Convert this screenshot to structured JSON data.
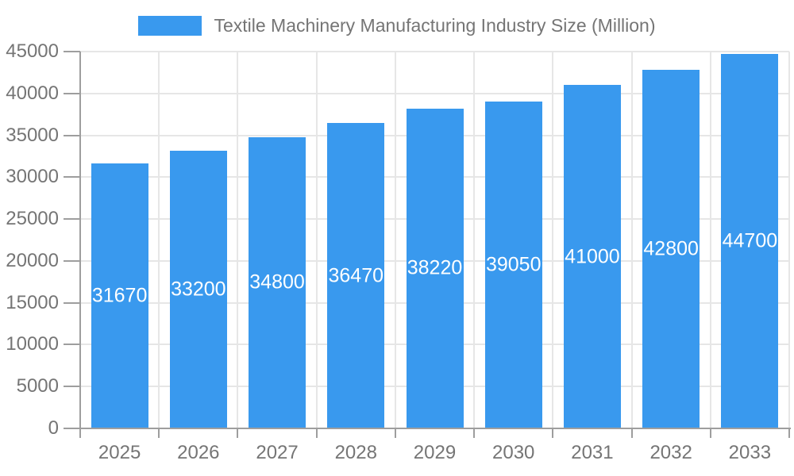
{
  "legend": {
    "label": "Textile Machinery Manufacturing Industry Size (Million)"
  },
  "colors": {
    "bar": "#3999EE",
    "grid": "#E6E6E6",
    "axis": "#9E9E9E",
    "axis_text": "#757575",
    "bar_label": "#FFFFFF",
    "background": "#FFFFFF"
  },
  "chart_data": {
    "type": "bar",
    "title": "Textile Machinery Manufacturing Industry Size (Million)",
    "categories": [
      "2025",
      "2026",
      "2027",
      "2028",
      "2029",
      "2030",
      "2031",
      "2032",
      "2033"
    ],
    "values": [
      31670,
      33200,
      34800,
      36470,
      38220,
      39050,
      41000,
      42800,
      44700
    ],
    "xlabel": "",
    "ylabel": "",
    "ylim": [
      0,
      45000
    ],
    "ytick_step": 5000,
    "ytick_labels": [
      "0",
      "5000",
      "10000",
      "15000",
      "20000",
      "25000",
      "30000",
      "35000",
      "40000",
      "45000"
    ],
    "grid": true,
    "legend_position": "top",
    "value_labels": "inside-center"
  }
}
